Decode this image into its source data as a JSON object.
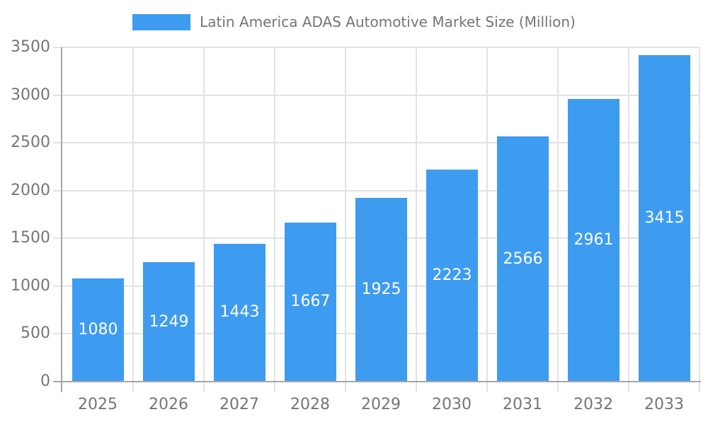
{
  "legend": {
    "label": "Latin America ADAS Automotive Market Size (Million)",
    "swatch_color": "#3d9cf0"
  },
  "chart_data": {
    "type": "bar",
    "title": "Latin America ADAS Automotive Market Size (Million)",
    "categories": [
      "2025",
      "2026",
      "2027",
      "2028",
      "2029",
      "2030",
      "2031",
      "2032",
      "2033"
    ],
    "values": [
      1080,
      1249,
      1443,
      1667,
      1925,
      2223,
      2566,
      2961,
      3415
    ],
    "xlabel": "",
    "ylabel": "",
    "ylim": [
      0,
      3500
    ],
    "yticks": [
      0,
      500,
      1000,
      1500,
      2000,
      2500,
      3000,
      3500
    ],
    "grid": true,
    "legend_position": "top",
    "colors": {
      "bar": "#3d9cf0",
      "value_label": "#ffffff",
      "axis_text": "#757575",
      "grid_line": "#e2e2e2",
      "axis_line": "#a6a6a6"
    }
  }
}
